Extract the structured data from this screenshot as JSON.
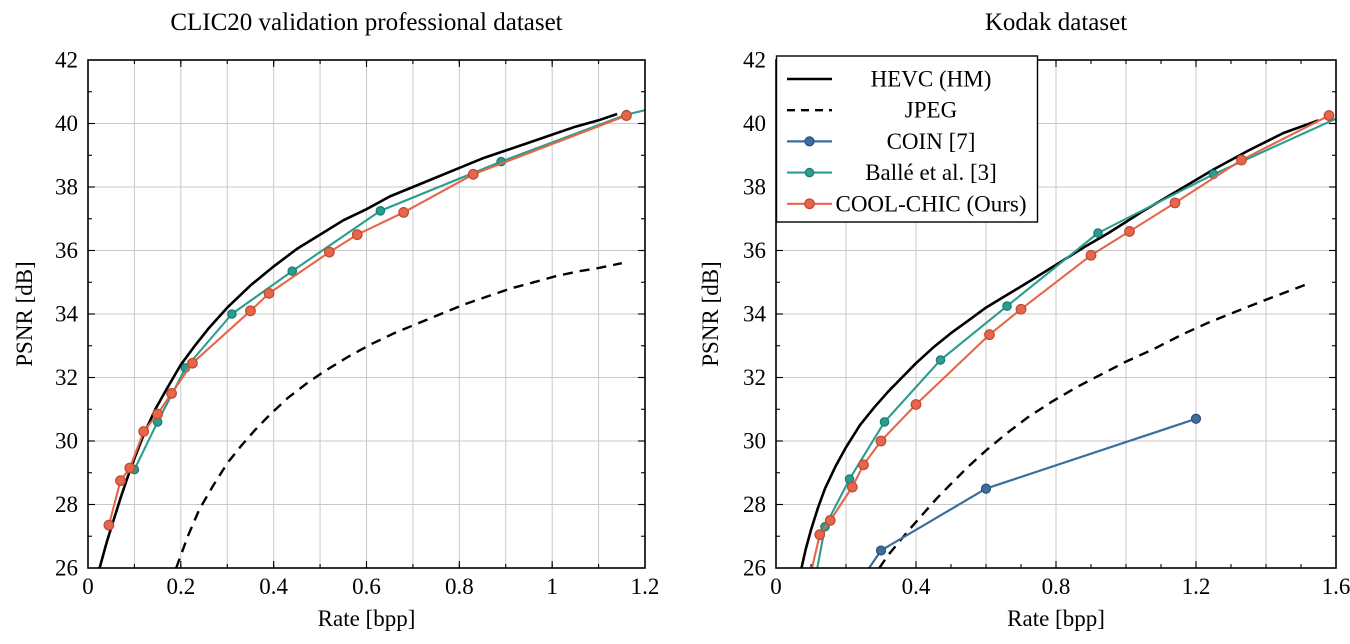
{
  "figure": {
    "background": "#ffffff"
  },
  "colors": {
    "axis": "#000000",
    "grid": "#c9c9c9",
    "hevc": "#000000",
    "jpeg": "#000000",
    "coin": "#3d6d9e",
    "coin_marker_stroke": "#2c5076",
    "balle": "#2a9d8f",
    "balle_marker_stroke": "#1f7a6f",
    "coolchic": "#e5664b",
    "coolchic_marker_stroke": "#bf4a31",
    "legend_bg": "#ffffff",
    "legend_border": "#000000"
  },
  "legend": {
    "entries": [
      "HEVC (HM)",
      "JPEG",
      "COIN [7]",
      "Ballé et al. [3]",
      "COOL-CHIC (Ours)"
    ]
  },
  "chart_data": [
    {
      "type": "line",
      "title": "CLIC20 validation professional dataset",
      "xlabel": "Rate [bpp]",
      "ylabel": "PSNR [dB]",
      "xlim": [
        0,
        1.2
      ],
      "ylim": [
        26,
        42
      ],
      "xticks": [
        0,
        0.2,
        0.4,
        0.6,
        0.8,
        1,
        1.2
      ],
      "xtick_labels": [
        "0",
        "0.2",
        "0.4",
        "0.6",
        "0.8",
        "1",
        "1.2"
      ],
      "yticks": [
        26,
        28,
        30,
        32,
        34,
        36,
        38,
        40,
        42
      ],
      "x_grid_step": 0.1,
      "x_minor_step": 0.1,
      "y_grid_step": 2,
      "y_minor_step": 1,
      "grid": true,
      "legend": false,
      "series": [
        {
          "name": "HEVC (HM)",
          "key": "hevc",
          "dash": false,
          "marker": false,
          "width": 2.6,
          "points": [
            [
              0.025,
              26
            ],
            [
              0.04,
              26.8
            ],
            [
              0.055,
              27.5
            ],
            [
              0.07,
              28.2
            ],
            [
              0.085,
              28.85
            ],
            [
              0.1,
              29.45
            ],
            [
              0.12,
              30.2
            ],
            [
              0.145,
              31.0
            ],
            [
              0.17,
              31.65
            ],
            [
              0.2,
              32.4
            ],
            [
              0.23,
              33.0
            ],
            [
              0.26,
              33.55
            ],
            [
              0.3,
              34.2
            ],
            [
              0.35,
              34.9
            ],
            [
              0.4,
              35.5
            ],
            [
              0.45,
              36.05
            ],
            [
              0.5,
              36.5
            ],
            [
              0.55,
              36.95
            ],
            [
              0.6,
              37.3
            ],
            [
              0.65,
              37.7
            ],
            [
              0.7,
              38.0
            ],
            [
              0.75,
              38.3
            ],
            [
              0.8,
              38.6
            ],
            [
              0.85,
              38.9
            ],
            [
              0.9,
              39.15
            ],
            [
              0.95,
              39.4
            ],
            [
              1.0,
              39.65
            ],
            [
              1.05,
              39.9
            ],
            [
              1.1,
              40.1
            ],
            [
              1.14,
              40.3
            ]
          ]
        },
        {
          "name": "JPEG",
          "key": "jpeg",
          "dash": true,
          "marker": false,
          "width": 2.4,
          "points": [
            [
              0.19,
              26
            ],
            [
              0.215,
              27.0
            ],
            [
              0.24,
              27.85
            ],
            [
              0.27,
              28.6
            ],
            [
              0.3,
              29.3
            ],
            [
              0.33,
              29.85
            ],
            [
              0.36,
              30.35
            ],
            [
              0.39,
              30.8
            ],
            [
              0.43,
              31.35
            ],
            [
              0.47,
              31.8
            ],
            [
              0.51,
              32.2
            ],
            [
              0.56,
              32.65
            ],
            [
              0.61,
              33.05
            ],
            [
              0.66,
              33.4
            ],
            [
              0.71,
              33.7
            ],
            [
              0.76,
              34.0
            ],
            [
              0.81,
              34.3
            ],
            [
              0.86,
              34.55
            ],
            [
              0.91,
              34.8
            ],
            [
              0.96,
              35.0
            ],
            [
              1.01,
              35.2
            ],
            [
              1.06,
              35.35
            ],
            [
              1.1,
              35.45
            ],
            [
              1.15,
              35.6
            ]
          ]
        },
        {
          "name": "Ballé et al. [3]",
          "key": "balle",
          "dash": false,
          "marker": true,
          "marker_r": 4.2,
          "width": 2.1,
          "points": [
            [
              0.1,
              29.1
            ],
            [
              0.15,
              30.6
            ],
            [
              0.21,
              32.3
            ],
            [
              0.31,
              34.0
            ],
            [
              0.44,
              35.35
            ],
            [
              0.63,
              37.25
            ],
            [
              0.89,
              38.8
            ],
            [
              1.16,
              40.28
            ]
          ],
          "line_post": [
            [
              1.2,
              40.42
            ]
          ]
        },
        {
          "name": "COOL-CHIC (Ours)",
          "key": "coolchic",
          "dash": false,
          "marker": true,
          "marker_r": 4.8,
          "width": 2.1,
          "points": [
            [
              0.045,
              27.35
            ],
            [
              0.07,
              28.75
            ],
            [
              0.09,
              29.15
            ],
            [
              0.12,
              30.3
            ],
            [
              0.15,
              30.85
            ],
            [
              0.18,
              31.5
            ],
            [
              0.225,
              32.45
            ],
            [
              0.35,
              34.1
            ],
            [
              0.39,
              34.65
            ],
            [
              0.52,
              35.95
            ],
            [
              0.58,
              36.5
            ],
            [
              0.68,
              37.2
            ],
            [
              0.83,
              38.4
            ],
            [
              1.16,
              40.25
            ]
          ]
        }
      ]
    },
    {
      "type": "line",
      "title": "Kodak dataset",
      "xlabel": "Rate [bpp]",
      "ylabel": "PSNR [dB]",
      "xlim": [
        0,
        1.6
      ],
      "ylim": [
        26,
        42
      ],
      "xticks": [
        0,
        0.4,
        0.8,
        1.2,
        1.6
      ],
      "xtick_labels": [
        "0",
        "0.4",
        "0.8",
        "1.2",
        "1.6"
      ],
      "yticks": [
        26,
        28,
        30,
        32,
        34,
        36,
        38,
        40,
        42
      ],
      "x_grid_step": 0.2,
      "x_minor_step": 0.1,
      "y_grid_step": 2,
      "y_minor_step": 1,
      "grid": true,
      "legend": true,
      "series": [
        {
          "name": "HEVC (HM)",
          "key": "hevc",
          "dash": false,
          "marker": false,
          "width": 2.6,
          "points": [
            [
              0.073,
              26
            ],
            [
              0.085,
              26.6
            ],
            [
              0.1,
              27.2
            ],
            [
              0.12,
              27.9
            ],
            [
              0.14,
              28.5
            ],
            [
              0.17,
              29.2
            ],
            [
              0.2,
              29.8
            ],
            [
              0.24,
              30.5
            ],
            [
              0.28,
              31.05
            ],
            [
              0.32,
              31.55
            ],
            [
              0.36,
              32.0
            ],
            [
              0.4,
              32.45
            ],
            [
              0.45,
              32.95
            ],
            [
              0.5,
              33.4
            ],
            [
              0.55,
              33.8
            ],
            [
              0.6,
              34.2
            ],
            [
              0.66,
              34.6
            ],
            [
              0.72,
              35.0
            ],
            [
              0.8,
              35.55
            ],
            [
              0.88,
              36.1
            ],
            [
              0.95,
              36.55
            ],
            [
              1.05,
              37.25
            ],
            [
              1.15,
              37.9
            ],
            [
              1.25,
              38.55
            ],
            [
              1.35,
              39.15
            ],
            [
              1.45,
              39.7
            ],
            [
              1.55,
              40.1
            ]
          ]
        },
        {
          "name": "JPEG",
          "key": "jpeg",
          "dash": true,
          "marker": false,
          "width": 2.4,
          "points": [
            [
              0.295,
              26
            ],
            [
              0.32,
              26.4
            ],
            [
              0.35,
              26.8
            ],
            [
              0.38,
              27.2
            ],
            [
              0.42,
              27.7
            ],
            [
              0.46,
              28.2
            ],
            [
              0.5,
              28.65
            ],
            [
              0.55,
              29.2
            ],
            [
              0.6,
              29.7
            ],
            [
              0.66,
              30.25
            ],
            [
              0.72,
              30.75
            ],
            [
              0.79,
              31.25
            ],
            [
              0.86,
              31.7
            ],
            [
              0.93,
              32.1
            ],
            [
              1.0,
              32.5
            ],
            [
              1.08,
              32.9
            ],
            [
              1.16,
              33.35
            ],
            [
              1.24,
              33.75
            ],
            [
              1.32,
              34.1
            ],
            [
              1.4,
              34.45
            ],
            [
              1.46,
              34.7
            ],
            [
              1.52,
              34.95
            ]
          ]
        },
        {
          "name": "COIN [7]",
          "key": "coin",
          "dash": false,
          "marker": true,
          "marker_r": 4.5,
          "width": 2.2,
          "points": [
            [
              0.3,
              26.55
            ],
            [
              0.6,
              28.5
            ],
            [
              1.2,
              30.7
            ]
          ],
          "line_pre": [
            [
              0.266,
              26.0
            ]
          ]
        },
        {
          "name": "Ballé et al. [3]",
          "key": "balle",
          "dash": false,
          "marker": true,
          "marker_r": 4.2,
          "width": 2.1,
          "points": [
            [
              0.14,
              27.3
            ],
            [
              0.21,
              28.8
            ],
            [
              0.31,
              30.6
            ],
            [
              0.47,
              32.55
            ],
            [
              0.66,
              34.25
            ],
            [
              0.92,
              36.55
            ],
            [
              1.25,
              38.4
            ]
          ],
          "line_pre": [
            [
              0.118,
              26.0
            ]
          ],
          "line_post": [
            [
              1.6,
              40.15
            ]
          ]
        },
        {
          "name": "COOL-CHIC (Ours)",
          "key": "coolchic",
          "dash": false,
          "marker": true,
          "marker_r": 4.8,
          "width": 2.1,
          "points": [
            [
              0.125,
              27.05
            ],
            [
              0.155,
              27.5
            ],
            [
              0.218,
              28.55
            ],
            [
              0.25,
              29.25
            ],
            [
              0.3,
              30.0
            ],
            [
              0.4,
              31.15
            ],
            [
              0.61,
              33.35
            ],
            [
              0.7,
              34.15
            ],
            [
              0.9,
              35.85
            ],
            [
              1.01,
              36.6
            ],
            [
              1.14,
              37.5
            ],
            [
              1.33,
              38.85
            ],
            [
              1.58,
              40.25
            ]
          ],
          "line_pre": [
            [
              0.103,
              26.0
            ]
          ]
        }
      ]
    }
  ]
}
